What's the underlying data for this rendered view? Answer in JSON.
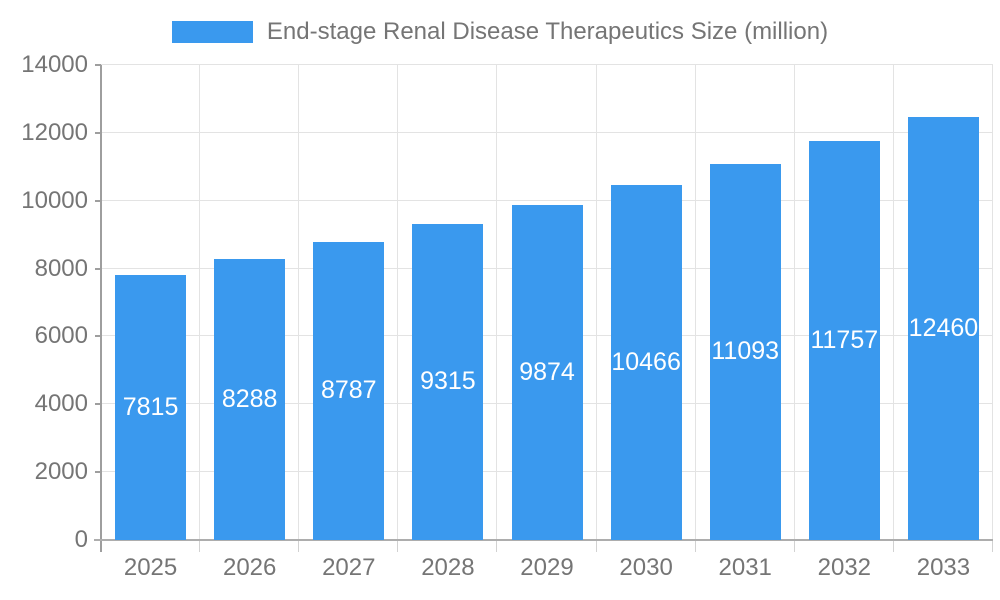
{
  "chart_data": {
    "type": "bar",
    "title": "End-stage Renal Disease Therapeutics Size (million)",
    "categories": [
      "2025",
      "2026",
      "2027",
      "2028",
      "2029",
      "2030",
      "2031",
      "2032",
      "2033"
    ],
    "values": [
      7815,
      8288,
      8787,
      9315,
      9874,
      10466,
      11093,
      11757,
      12460
    ],
    "xlabel": "",
    "ylabel": "",
    "ylim": [
      0,
      14000
    ],
    "yticks": [
      0,
      2000,
      4000,
      6000,
      8000,
      10000,
      12000,
      14000
    ],
    "grid": true,
    "legend_position": "top",
    "bar_color": "#3A99EE",
    "value_label_color": "#FFFFFF"
  },
  "colors": {
    "bar": "#3A99EE",
    "grid": "#E3E3E3",
    "y_axis": "#9E9E9E",
    "x_axis": "#ADADAD",
    "x_tick": "#D2D2D2",
    "y_tick": "#9E9E9E",
    "tick_label": "#757575",
    "legend_text": "#757575",
    "value_label": "#FFFFFF",
    "background": "#FFFFFF"
  }
}
